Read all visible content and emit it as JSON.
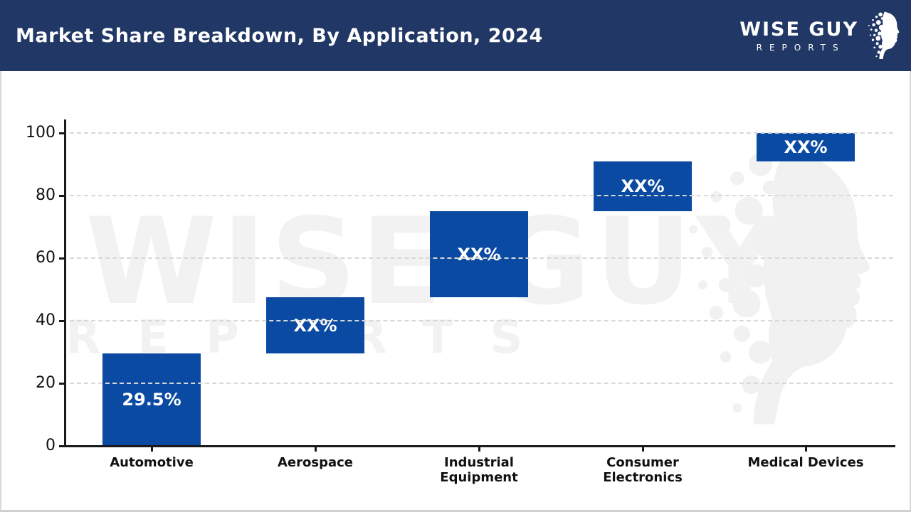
{
  "header": {
    "title": "Market Share Breakdown, By Application, 2024",
    "bg_color": "#213765",
    "logo": {
      "line1": "WISE GUY",
      "line2": "REPORTS"
    }
  },
  "watermark": {
    "line1": "WISE GUY",
    "line2": "REPORTS"
  },
  "chart_data": {
    "type": "bar",
    "subtype": "waterfall",
    "title": "Market Share Breakdown, By Application, 2024",
    "categories": [
      "Automotive",
      "Aerospace",
      "Industrial Equipment",
      "Consumer Electronics",
      "Medical Devices"
    ],
    "category_lines": [
      [
        "Automotive"
      ],
      [
        "Aerospace"
      ],
      [
        "Industrial",
        "Equipment"
      ],
      [
        "Consumer",
        "Electronics"
      ],
      [
        "Medical Devices"
      ]
    ],
    "series": [
      {
        "name": "Market share (%)",
        "segments": [
          {
            "category": "Automotive",
            "start": 0,
            "end": 29.5,
            "label": "29.5%"
          },
          {
            "category": "Aerospace",
            "start": 29.5,
            "end": 47.5,
            "label": "XX%"
          },
          {
            "category": "Industrial Equipment",
            "start": 47.5,
            "end": 75,
            "label": "XX%"
          },
          {
            "category": "Consumer Electronics",
            "start": 75,
            "end": 91,
            "label": "XX%"
          },
          {
            "category": "Medical Devices",
            "start": 91,
            "end": 100,
            "label": "XX%"
          }
        ]
      }
    ],
    "bar_color": "#0b4aa2",
    "bar_label_color": "#ffffff",
    "ylim": [
      0,
      100
    ],
    "yticks": [
      0,
      20,
      40,
      60,
      80,
      100
    ],
    "grid": {
      "horizontal": true,
      "style": "dashed",
      "color": "#d8d8d8"
    },
    "legend": null
  }
}
